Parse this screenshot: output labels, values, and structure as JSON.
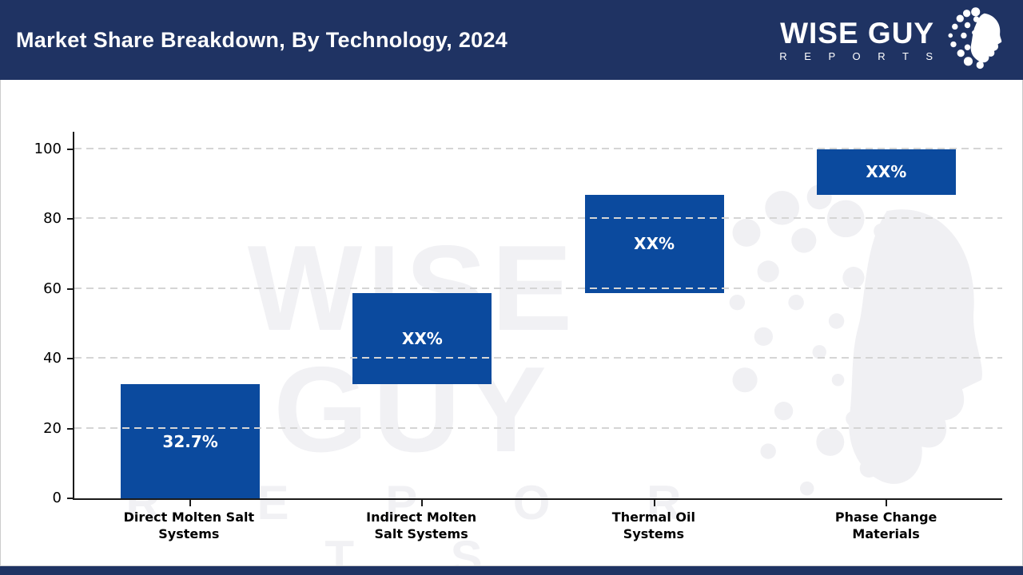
{
  "header": {
    "title": "Market Share Breakdown, By Technology, 2024",
    "logo": {
      "name": "WISE GUY",
      "sub": "R E P O R T S"
    }
  },
  "watermark": {
    "name": "WISE GUY",
    "sub": "R E P O R T S"
  },
  "chart_data": {
    "type": "bar",
    "subtype": "waterfall",
    "title": "Market Share Breakdown, By Technology, 2024",
    "xlabel": "",
    "ylabel": "",
    "categories": [
      [
        "Direct Molten Salt",
        "Systems"
      ],
      [
        "Indirect Molten",
        "Salt Systems"
      ],
      [
        "Thermal Oil",
        "Systems"
      ],
      [
        "Phase Change",
        "Materials"
      ]
    ],
    "segments": [
      {
        "label": "32.7%",
        "start": 0,
        "end": 32.7
      },
      {
        "label": "XX%",
        "start": 32.7,
        "end": 58.8
      },
      {
        "label": "XX%",
        "start": 58.8,
        "end": 87.0
      },
      {
        "label": "XX%",
        "start": 87.0,
        "end": 100.0
      }
    ],
    "yticks": [
      0,
      20,
      40,
      60,
      80,
      100
    ],
    "ylim": [
      0,
      105
    ],
    "bar_width_fraction": 0.6,
    "grid": "dashed horizontal",
    "legend": false,
    "bar_color": "#0b4a9e"
  },
  "colors": {
    "header_bg": "#1f3363",
    "bar": "#0b4a9e",
    "watermark": "#f0f0f3",
    "gridline": "#d5d5d5"
  }
}
